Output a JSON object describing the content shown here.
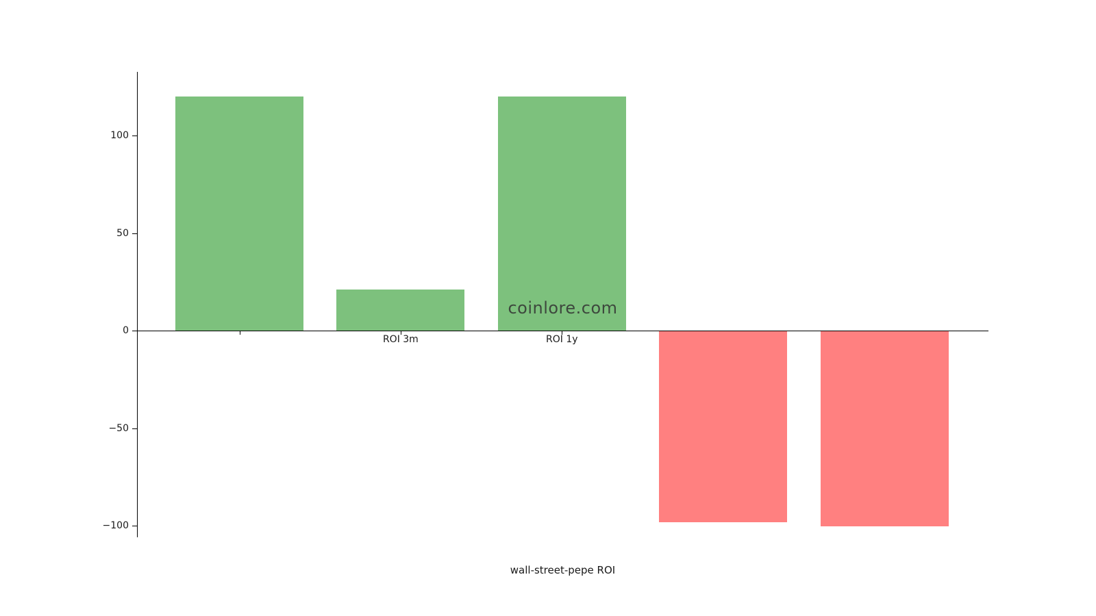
{
  "chart_data": {
    "type": "bar",
    "categories": [
      "",
      "ROI 3m",
      "ROI 1y",
      "",
      ""
    ],
    "values": [
      120,
      21,
      120,
      -98,
      -100
    ],
    "series": [
      {
        "name": "ROI",
        "values": [
          120,
          21,
          120,
          -98,
          -100
        ]
      }
    ],
    "title": "",
    "xlabel": "wall-street-pepe ROI",
    "ylabel": "",
    "ylim": [
      -106,
      133
    ],
    "yticks": [
      100,
      50,
      0,
      -50,
      -100
    ],
    "ytick_labels": [
      "100",
      "50",
      "0",
      "−50",
      "−100"
    ],
    "xticks_with_marks": [
      0,
      1,
      2
    ],
    "grid": false,
    "legend": null,
    "watermark": "coinlore.com",
    "positive_color": "#7dc17d",
    "negative_color": "#ff8080",
    "axis_color": "#000000",
    "text_color": "#1a1a1a",
    "background_color": "#ffffff"
  }
}
